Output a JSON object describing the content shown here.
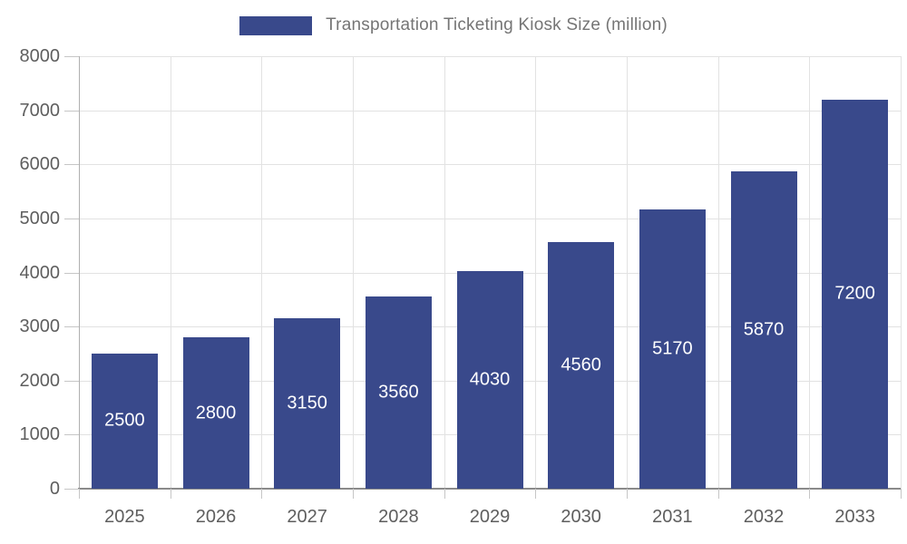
{
  "chart_data": {
    "type": "bar",
    "title": "Transportation Ticketing Kiosk Size (million)",
    "categories": [
      "2025",
      "2026",
      "2027",
      "2028",
      "2029",
      "2030",
      "2031",
      "2032",
      "2033"
    ],
    "series": [
      {
        "name": "Transportation Ticketing Kiosk Size (million)",
        "values": [
          2500,
          2800,
          3150,
          3560,
          4030,
          4560,
          5170,
          5870,
          7200
        ]
      }
    ],
    "xlabel": "",
    "ylabel": "",
    "ylim": [
      0,
      8000
    ],
    "ytick_step": 1000,
    "ytick_labels": [
      "0",
      "1000",
      "2000",
      "3000",
      "4000",
      "5000",
      "6000",
      "7000",
      "8000"
    ],
    "grid": true,
    "legend_position": "top-center",
    "value_labels": "inside-center",
    "colors": {
      "bar": "#39498B",
      "value_label": "#ffffff",
      "axis_label": "#5e5e5e",
      "legend_text": "#757575",
      "grid": "#e2e2e2",
      "tick": "#c6c6c6",
      "y_axis_line": "#b0b0b0",
      "x_axis_line": "#8a8a8a",
      "background": "#ffffff"
    }
  }
}
